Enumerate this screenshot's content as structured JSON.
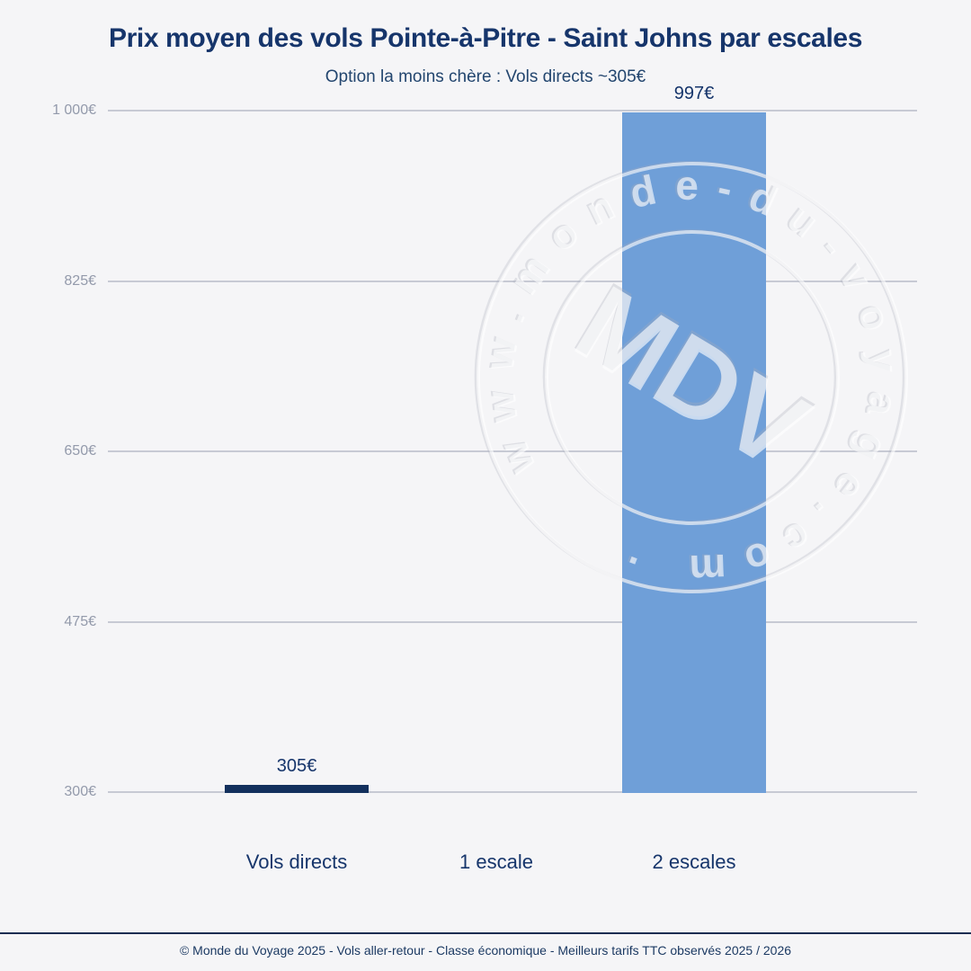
{
  "title": "Prix moyen des vols Pointe-à-Pitre - Saint Johns par escales",
  "subtitle": "Option la moins chère : Vols directs ~305€",
  "watermark": {
    "ring_text": "www.monde-du-voyage.com ·",
    "center_text": "MDV"
  },
  "footer": {
    "text": "© Monde du Voyage 2025 - Vols aller-retour - Classe économique - Meilleurs tarifs TTC observés 2025 / 2026"
  },
  "chart_data": {
    "type": "bar",
    "title": "Prix moyen des vols Pointe-à-Pitre - Saint Johns par escales",
    "subtitle": "Option la moins chère : Vols directs ~305€",
    "categories": [
      "Vols directs",
      "1 escale",
      "2 escales"
    ],
    "values": [
      305,
      null,
      997
    ],
    "bar_labels": [
      "305€",
      "",
      "997€"
    ],
    "bar_colors": [
      "#13305d",
      null,
      "#6f9fd8"
    ],
    "xlabel": "",
    "ylabel": "",
    "ylim": [
      300,
      1000
    ],
    "grid": true,
    "legend": false,
    "y_ticks": [
      {
        "value": 1000,
        "label": "1 000€"
      },
      {
        "value": 825,
        "label": "825€"
      },
      {
        "value": 650,
        "label": "650€"
      },
      {
        "value": 475,
        "label": "475€"
      },
      {
        "value": 300,
        "label": "300€"
      }
    ],
    "currency": "€",
    "colors": {
      "background": "#f5f5f7",
      "title": "#16356b",
      "subtitle": "#23466f",
      "gridline": "#c7cad4",
      "tick_label": "#939aab",
      "bar_direct": "#13305d",
      "bar_two_stops": "#6f9fd8",
      "footer": "#1c3a63"
    }
  }
}
